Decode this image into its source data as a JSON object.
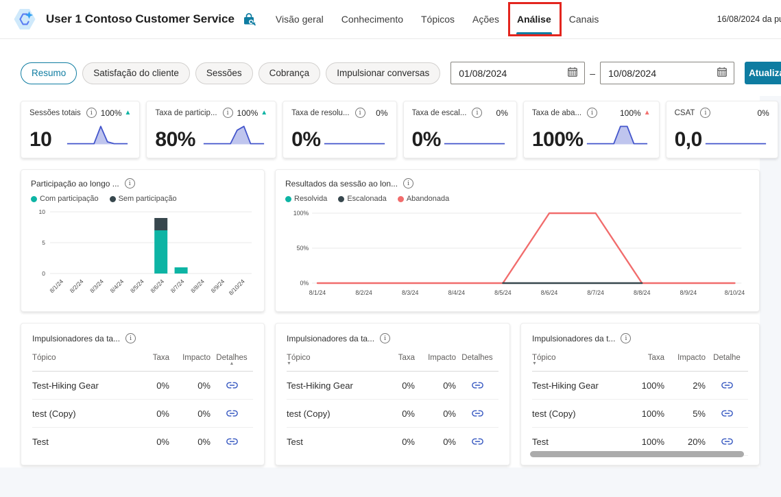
{
  "colors": {
    "accent": "#0e7ca1",
    "teal": "#0db4a4",
    "dark": "#37474d",
    "red_line": "#f16c6c",
    "trend_up_teal": "#0db4a4",
    "trend_up_red": "#f3716f",
    "spark_line": "#4355cb",
    "spark_fill": "rgba(138,149,224,0.55)",
    "link": "#3456c0",
    "annotation_red": "#e3251e",
    "grid": "#e8e8e8",
    "axis_text": "#4a4a4a"
  },
  "header": {
    "bot_name": "User 1 Contoso Customer Service",
    "published_note": "16/08/2024 da pu",
    "logo_icon": "copilot-hexagon-icon",
    "badge_icon": "key-badge-icon",
    "tabs": [
      {
        "label": "Visão geral",
        "active": false
      },
      {
        "label": "Conhecimento",
        "active": false
      },
      {
        "label": "Tópicos",
        "active": false
      },
      {
        "label": "Ações",
        "active": false
      },
      {
        "label": "Análise",
        "active": true,
        "annotated": true
      },
      {
        "label": "Canais",
        "active": false
      }
    ]
  },
  "filters": {
    "pills": [
      {
        "label": "Resumo",
        "selected": true
      },
      {
        "label": "Satisfação do cliente",
        "selected": false
      },
      {
        "label": "Sessões",
        "selected": false
      },
      {
        "label": "Cobrança",
        "selected": false
      },
      {
        "label": "Impulsionar conversas",
        "selected": false
      }
    ],
    "date_from": "01/08/2024",
    "date_to": "10/08/2024",
    "range_separator": "–",
    "refresh_label": "Atualizar"
  },
  "kpis": [
    {
      "title": "Sessões totais",
      "trend": "100%",
      "trend_arrow": "up",
      "trend_arrow_color": "#0db4a4",
      "value": "10",
      "spark": [
        0,
        0,
        0,
        0,
        0,
        100,
        11,
        0,
        0,
        0
      ]
    },
    {
      "title": "Taxa de particip...",
      "trend": "100%",
      "trend_arrow": "up",
      "trend_arrow_color": "#0db4a4",
      "value": "80%",
      "spark": [
        0,
        0,
        0,
        0,
        0,
        78,
        100,
        0,
        0,
        0
      ]
    },
    {
      "title": "Taxa de resolu...",
      "trend": "0%",
      "trend_arrow": null,
      "value": "0%",
      "spark": [
        0,
        0,
        0,
        0,
        0,
        0,
        0,
        0,
        0,
        0
      ]
    },
    {
      "title": "Taxa de escal...",
      "trend": "0%",
      "trend_arrow": null,
      "value": "0%",
      "spark": [
        0,
        0,
        0,
        0,
        0,
        0,
        0,
        0,
        0,
        0
      ]
    },
    {
      "title": "Taxa de aba...",
      "trend": "100%",
      "trend_arrow": "up",
      "trend_arrow_color": "#f3716f",
      "value": "100%",
      "spark": [
        0,
        0,
        0,
        0,
        0,
        100,
        100,
        0,
        0,
        0
      ]
    },
    {
      "title": "CSAT",
      "trend": "0%",
      "trend_arrow": null,
      "value": "0,0",
      "spark": [
        0,
        0,
        0,
        0,
        0,
        0,
        0,
        0,
        0,
        0
      ]
    }
  ],
  "chart_data": [
    {
      "id": "engagement-over-time",
      "type": "bar",
      "stacked": true,
      "title": "Participação ao longo ...",
      "categories": [
        "8/1/24",
        "8/2/24",
        "8/3/24",
        "8/4/24",
        "8/5/24",
        "8/6/24",
        "8/7/24",
        "8/8/24",
        "8/9/24",
        "8/10/24"
      ],
      "series": [
        {
          "name": "Com participação",
          "color": "#0db4a4",
          "values": [
            0,
            0,
            0,
            0,
            0,
            7,
            1,
            0,
            0,
            0
          ]
        },
        {
          "name": "Sem participação",
          "color": "#37474d",
          "values": [
            0,
            0,
            0,
            0,
            0,
            2,
            0,
            0,
            0,
            0
          ]
        }
      ],
      "ylim": [
        0,
        10
      ],
      "yticks": [
        0,
        5,
        10
      ],
      "grid": true,
      "legend_position": "top-left"
    },
    {
      "id": "session-outcomes-over-time",
      "type": "line",
      "title": "Resultados da sessão ao lon...",
      "categories": [
        "8/1/24",
        "8/2/24",
        "8/3/24",
        "8/4/24",
        "8/5/24",
        "8/6/24",
        "8/7/24",
        "8/8/24",
        "8/9/24",
        "8/10/24"
      ],
      "series": [
        {
          "name": "Resolvida",
          "color": "#0db4a4",
          "values": [
            null,
            null,
            null,
            null,
            null,
            null,
            null,
            null,
            null,
            null
          ]
        },
        {
          "name": "Escalonada",
          "color": "#37474d",
          "values": [
            null,
            null,
            null,
            null,
            0,
            0,
            0,
            0,
            null,
            null
          ]
        },
        {
          "name": "Abandonada",
          "color": "#f16c6c",
          "values": [
            0,
            0,
            0,
            0,
            0,
            100,
            100,
            0,
            0,
            0
          ]
        }
      ],
      "ylim": [
        0,
        100
      ],
      "yticks": [
        0,
        50,
        100
      ],
      "ytick_labels": [
        "0%",
        "50%",
        "100%"
      ],
      "grid": true,
      "legend_position": "top-left"
    }
  ],
  "tables": [
    {
      "title": "Impulsionadores da ta...",
      "columns": [
        "Tópico",
        "Taxa",
        "Impacto",
        "Detalhes"
      ],
      "sort": {
        "column": 3,
        "dir": "asc"
      },
      "rows": [
        {
          "topic": "Test-Hiking Gear",
          "taxa": "0%",
          "impacto": "0%"
        },
        {
          "topic": "test (Copy)",
          "taxa": "0%",
          "impacto": "0%"
        },
        {
          "topic": "Test",
          "taxa": "0%",
          "impacto": "0%"
        }
      ],
      "has_scrollbar": false
    },
    {
      "title": "Impulsionadores da ta...",
      "columns": [
        "Tópico",
        "Taxa",
        "Impacto",
        "Detalhes"
      ],
      "sort": {
        "column": 0,
        "dir": "desc"
      },
      "rows": [
        {
          "topic": "Test-Hiking Gear",
          "taxa": "0%",
          "impacto": "0%"
        },
        {
          "topic": "test (Copy)",
          "taxa": "0%",
          "impacto": "0%"
        },
        {
          "topic": "Test",
          "taxa": "0%",
          "impacto": "0%"
        }
      ],
      "has_scrollbar": false
    },
    {
      "title": "Impulsionadores da t...",
      "columns": [
        "Tópico",
        "Taxa",
        "Impacto",
        "Detalhe"
      ],
      "sort": {
        "column": 0,
        "dir": "desc"
      },
      "rows": [
        {
          "topic": "Test-Hiking Gear",
          "taxa": "100%",
          "impacto": "2%"
        },
        {
          "topic": "test (Copy)",
          "taxa": "100%",
          "impacto": "5%"
        },
        {
          "topic": "Test",
          "taxa": "100%",
          "impacto": "20%"
        }
      ],
      "has_scrollbar": true
    }
  ],
  "icons": {
    "info": "i",
    "trend_up": "▲",
    "sort_asc": "▲",
    "sort_desc": "▼"
  }
}
